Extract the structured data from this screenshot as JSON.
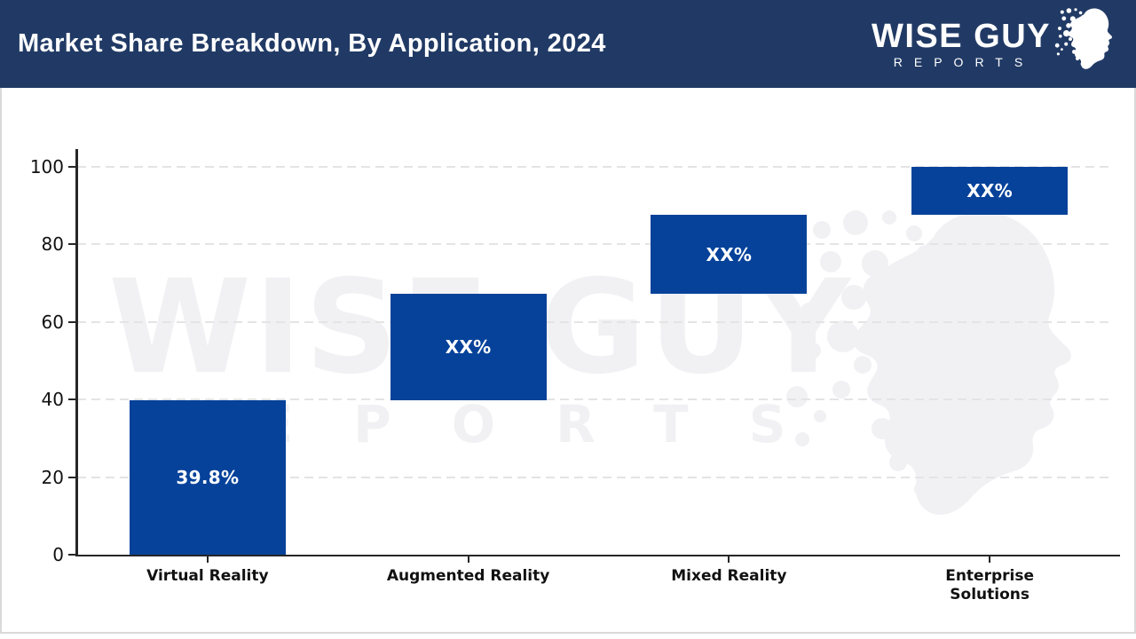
{
  "header": {
    "title": "Market Share Breakdown, By Application, 2024",
    "logo": {
      "brand_line1": "WISE GUY",
      "brand_line2": "REPORTS"
    }
  },
  "watermark": {
    "line1": "WISE GUY",
    "line2": "REPORTS"
  },
  "colors": {
    "header_bg": "#213A65",
    "bar": "#06429A",
    "grid": "#e4e4e4",
    "axis": "#262626",
    "bar_label": "#ffffff",
    "watermark": "#f1f1f4",
    "frame_border": "#d9d9d9"
  },
  "chart_data": {
    "type": "bar",
    "subtype": "waterfall",
    "title": "Market Share Breakdown, By Application, 2024",
    "categories": [
      "Virtual Reality",
      "Augmented Reality",
      "Mixed Reality",
      "Enterprise\nSolutions"
    ],
    "segments": [
      {
        "category": "Virtual Reality",
        "start": 0,
        "end": 39.8,
        "label": "39.8%"
      },
      {
        "category": "Augmented Reality",
        "start": 39.8,
        "end": 67.2,
        "label": "XX%"
      },
      {
        "category": "Mixed Reality",
        "start": 67.2,
        "end": 87.5,
        "label": "XX%"
      },
      {
        "category": "Enterprise Solutions",
        "start": 87.5,
        "end": 100,
        "label": "XX%"
      }
    ],
    "xlabel": "",
    "ylabel": "",
    "ylim": [
      0,
      100
    ],
    "yticks": [
      0,
      20,
      40,
      60,
      80,
      100
    ],
    "grid": "horizontal-dashed",
    "legend": "none"
  }
}
